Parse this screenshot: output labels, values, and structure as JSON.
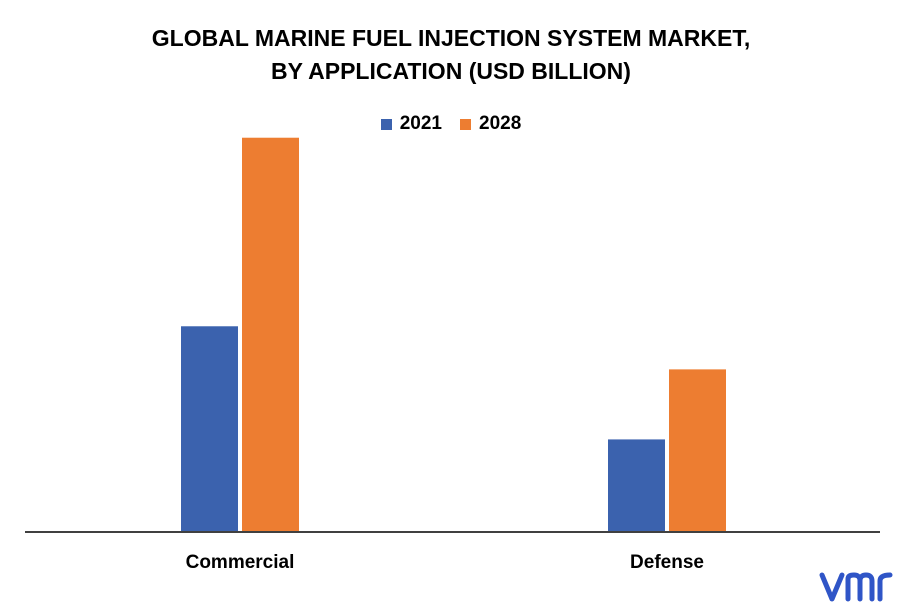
{
  "chart_data": {
    "type": "bar",
    "title_lines": [
      "GLOBAL MARINE FUEL INJECTION SYSTEM MARKET,",
      "BY APPLICATION (USD BILLION)"
    ],
    "categories": [
      "Commercial",
      "Defense"
    ],
    "series": [
      {
        "name": "2021",
        "color": "#3b62ae",
        "values": [
          1.9,
          0.85
        ]
      },
      {
        "name": "2028",
        "color": "#ed7d31",
        "values": [
          3.65,
          1.5
        ]
      }
    ],
    "ylim": [
      0,
      4
    ],
    "grid": false,
    "legend_position": "top-center",
    "xlabel": "",
    "ylabel": ""
  },
  "logo": {
    "text": "vmr",
    "color": "#2f55c7",
    "icon": "vmr-logo"
  }
}
